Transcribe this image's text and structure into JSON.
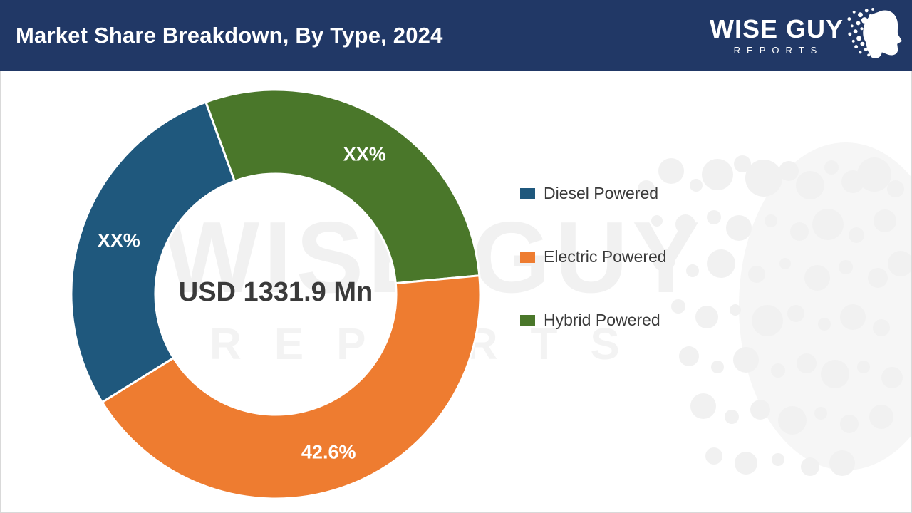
{
  "header": {
    "title": "Market Share Breakdown, By Type, 2024",
    "logo": {
      "name": "WISE GUY",
      "tagline": "REPORTS"
    }
  },
  "watermark": {
    "line1": "WISE GUY",
    "line2": "REPORTS"
  },
  "chart_data": {
    "type": "pie",
    "subtype": "donut",
    "title": "Market Share Breakdown, By Type, 2024",
    "center_text": "USD 1331.9 Mn",
    "legend_position": "right",
    "start_angle_deg": -20,
    "draw_order": [
      2,
      1,
      0
    ],
    "segments": [
      {
        "name": "Diesel Powered",
        "label": "XX%",
        "value": 28.3,
        "color": "#1f587d"
      },
      {
        "name": "Electric Powered",
        "label": "42.6%",
        "value": 42.6,
        "color": "#ee7c30"
      },
      {
        "name": "Hybrid Powered",
        "label": "XX%",
        "value": 29.1,
        "color": "#4a772a"
      }
    ]
  },
  "colors": {
    "header_bg": "#213866",
    "text_dark": "#3a3a3a",
    "watermark": "#f1f1f1",
    "border": "#d9d9d9"
  }
}
